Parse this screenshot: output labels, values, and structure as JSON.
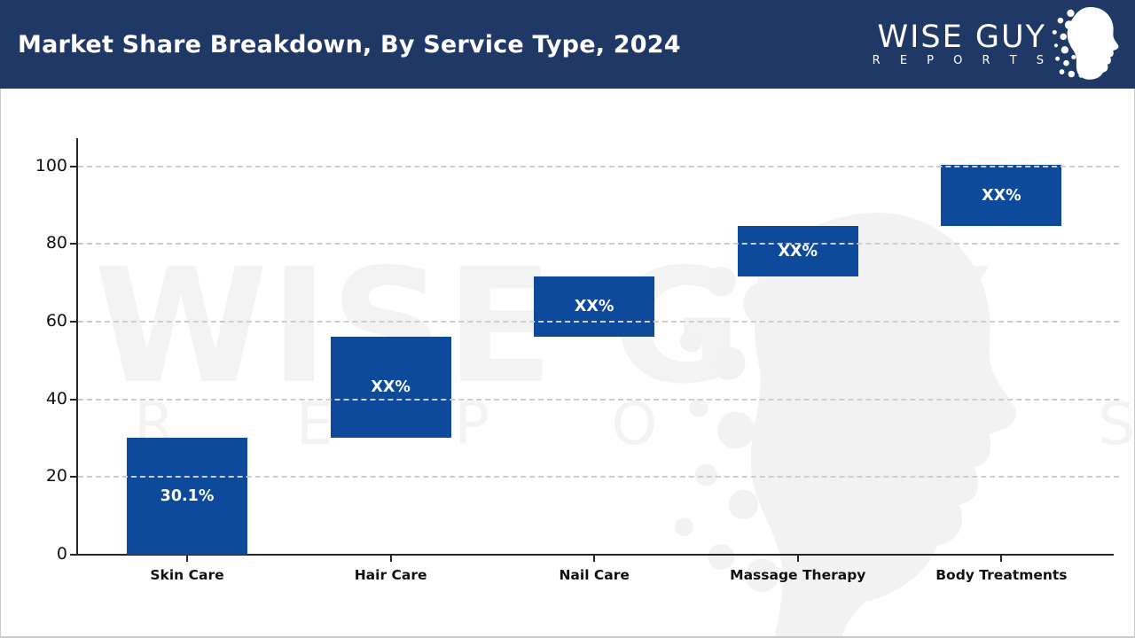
{
  "header": {
    "title": "Market Share Breakdown, By Service Type, 2024",
    "background_color": "#203865",
    "logo": {
      "line1": "WISE GUY",
      "line2": "R E P O R T S"
    }
  },
  "watermark": {
    "line1": "WISE GUY",
    "line2": "R E P O R T S"
  },
  "chart_data": {
    "type": "bar",
    "subtype": "waterfall",
    "title": "Market Share Breakdown, By Service Type, 2024",
    "categories": [
      "Skin Care",
      "Hair Care",
      "Nail Care",
      "Massage Therapy",
      "Body Treatments"
    ],
    "segments": [
      {
        "category": "Skin Care",
        "start": 0,
        "end": 30.1,
        "label": "30.1%"
      },
      {
        "category": "Hair Care",
        "start": 30.1,
        "end": 56.2,
        "label": "XX%"
      },
      {
        "category": "Nail Care",
        "start": 56.2,
        "end": 71.5,
        "label": "XX%"
      },
      {
        "category": "Massage Therapy",
        "start": 71.5,
        "end": 84.5,
        "label": "XX%"
      },
      {
        "category": "Body Treatments",
        "start": 84.5,
        "end": 100.3,
        "label": "XX%"
      }
    ],
    "xlabel": "",
    "ylabel": "",
    "yticks": [
      0,
      20,
      40,
      60,
      80,
      100
    ],
    "ylim": [
      0,
      107
    ],
    "grid": "horizontal dashed, drawn above bars",
    "legend": "none",
    "bar_color": "#0d4a9c",
    "bar_label_color": "#ffffff",
    "axis_color": "#262626",
    "gridline_color": "#cdcdcd"
  }
}
